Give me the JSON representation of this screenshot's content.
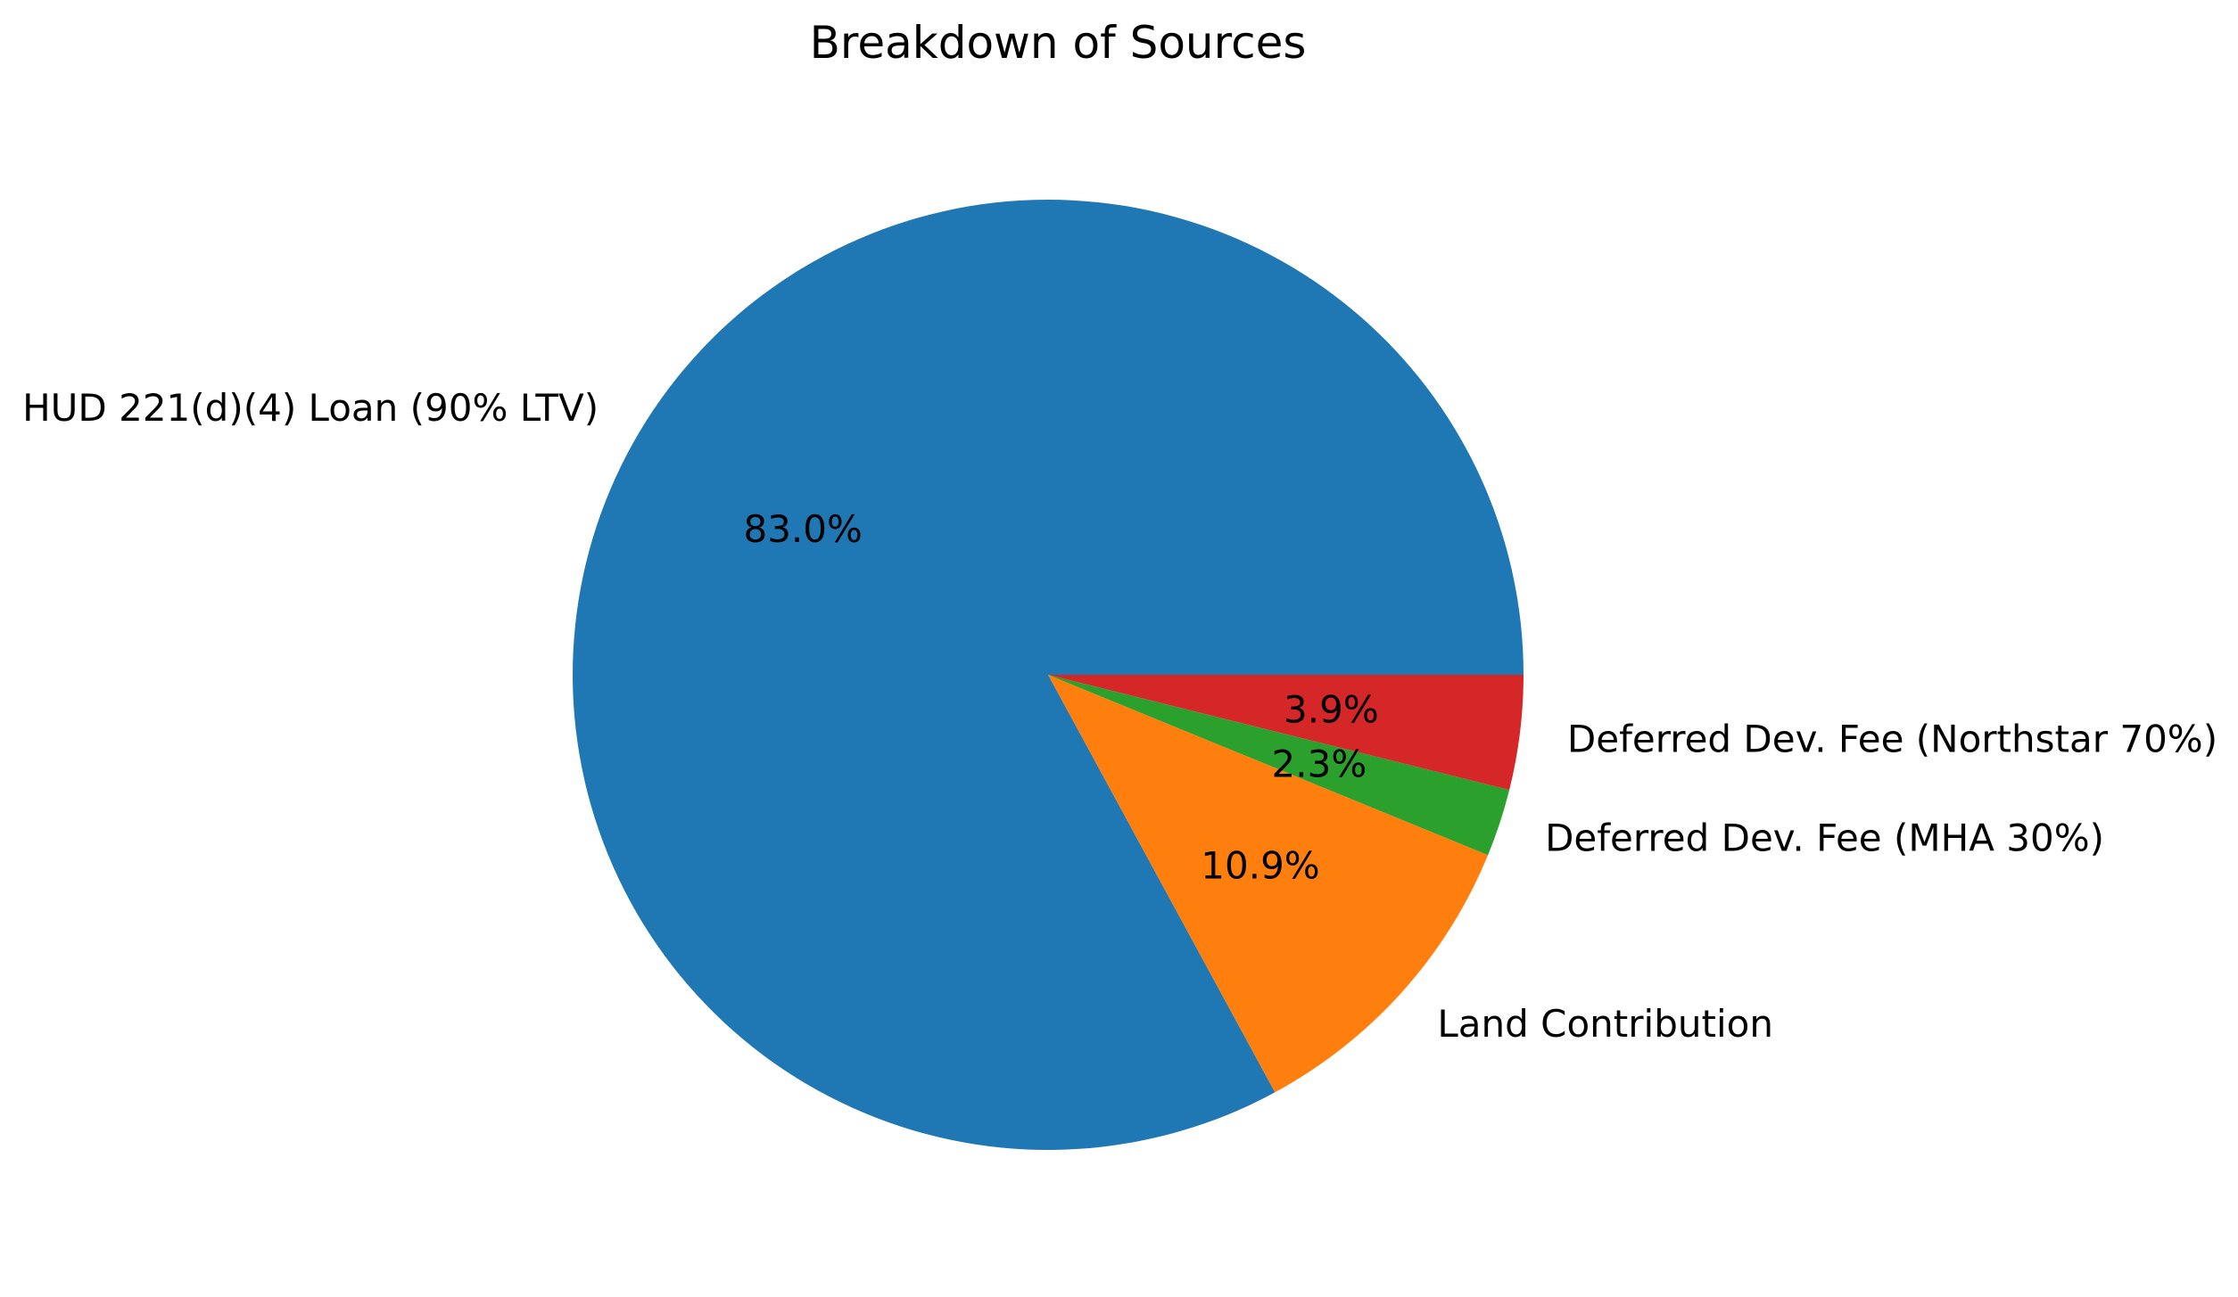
{
  "page": {
    "background_color": "#ffffff",
    "text_color": "#000000"
  },
  "chart_data": {
    "type": "pie",
    "title": "Breakdown of Sources",
    "startangle_deg": 0,
    "direction": "counterclockwise",
    "labeldistance": 1.1,
    "pctdistance": 0.6,
    "legend": "none",
    "slices": [
      {
        "label": "HUD 221(d)(4) Loan (90% LTV)",
        "value": 83.0,
        "pct_label": "83.0%",
        "color": "#1f77b4"
      },
      {
        "label": "Land Contribution",
        "value": 10.9,
        "pct_label": "10.9%",
        "color": "#ff7f0e"
      },
      {
        "label": "Deferred Dev. Fee (MHA 30%)",
        "value": 2.3,
        "pct_label": "2.3%",
        "color": "#2ca02c"
      },
      {
        "label": "Deferred Dev. Fee (Northstar 70%)",
        "value": 3.9,
        "pct_label": "3.9%",
        "color": "#d62728"
      }
    ]
  }
}
